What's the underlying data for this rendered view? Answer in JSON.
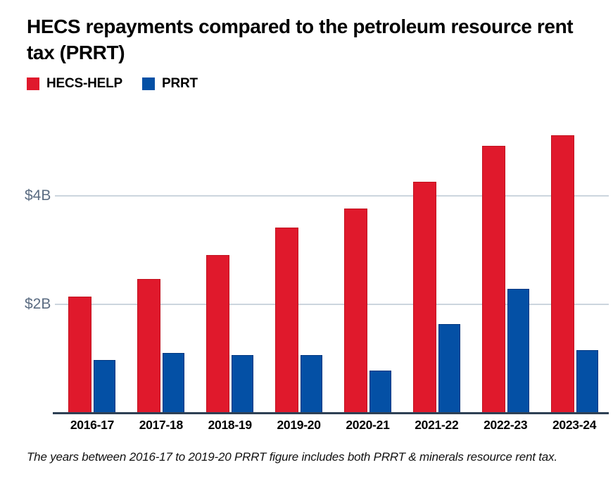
{
  "title": "HECS repayments compared to the petroleum resource rent tax (PRRT)",
  "footnote": "The years between 2016-17 to 2019-20 PRRT figure includes both PRRT & minerals resource rent tax.",
  "legend": [
    {
      "label": "HECS-HELP",
      "color": "#e0192c"
    },
    {
      "label": "PRRT",
      "color": "#0450a5"
    }
  ],
  "colors": {
    "hecs_fill": "#e0192c",
    "hecs_border": "#c1121f",
    "prrt_fill": "#0450a5",
    "prrt_border": "#00357f",
    "gridline": "#ccd5de",
    "axis_line": "#2e4054",
    "tick_label": "#5b6c82",
    "background": "#ffffff"
  },
  "chart_data": {
    "type": "bar",
    "title": "HECS repayments compared to the petroleum resource rent tax (PRRT)",
    "categories": [
      "2016-17",
      "2017-18",
      "2018-19",
      "2019-20",
      "2020-21",
      "2021-22",
      "2022-23",
      "2023-24"
    ],
    "series": [
      {
        "name": "HECS-HELP",
        "color": "#e0192c",
        "border": "#c1121f",
        "values": [
          2.14,
          2.47,
          2.91,
          3.41,
          3.76,
          4.26,
          4.92,
          5.11
        ]
      },
      {
        "name": "PRRT",
        "color": "#0450a5",
        "border": "#00357f",
        "values": [
          0.98,
          1.1,
          1.06,
          1.06,
          0.78,
          1.64,
          2.28,
          1.16
        ]
      }
    ],
    "unit": "billions AUD",
    "xlabel": "",
    "ylabel": "",
    "y_ticks": [
      {
        "value": 2,
        "label": "$2B"
      },
      {
        "value": 4,
        "label": "$4B"
      }
    ],
    "ylim": [
      0,
      5.4
    ],
    "grid": "horizontal only at $2B and $4B",
    "legend_position": "top-left"
  }
}
